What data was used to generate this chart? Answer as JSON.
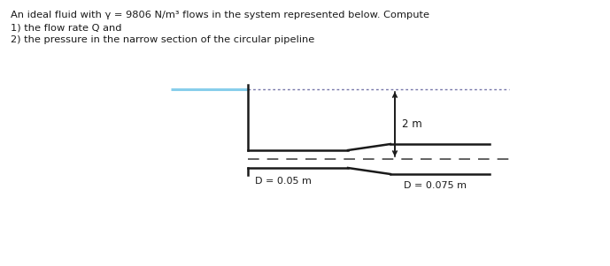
{
  "text_line1": "An ideal fluid with γ = 9806 N/m³ flows in the system represented below. Compute",
  "text_line2": "1) the flow rate Q and",
  "text_line3": "2) the pressure in the narrow section of the circular pipeline",
  "label_D1": "D = 0.05 m",
  "label_D2": "D = 0.075 m",
  "label_2m": "2 m",
  "bg_color": "#ffffff",
  "line_color": "#1a1a1a",
  "water_color": "#87CEEB",
  "dash_color": "#555555",
  "dotted_color": "#7777aa"
}
